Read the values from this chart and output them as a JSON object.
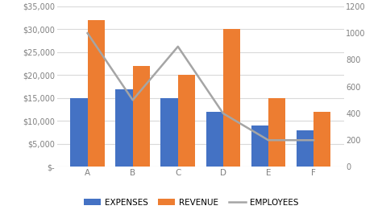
{
  "categories": [
    "A",
    "B",
    "C",
    "D",
    "E",
    "F"
  ],
  "expenses": [
    15000,
    17000,
    15000,
    12000,
    9000,
    8000
  ],
  "revenue": [
    32000,
    22000,
    20000,
    30000,
    15000,
    12000
  ],
  "employees": [
    1000,
    500,
    900,
    400,
    200,
    200
  ],
  "bar_color_expenses": "#4472C4",
  "bar_color_revenue": "#ED7D31",
  "line_color_employees": "#A5A5A5",
  "ylim_left": [
    0,
    35000
  ],
  "ylim_right": [
    0,
    1200
  ],
  "yticks_left": [
    0,
    5000,
    10000,
    15000,
    20000,
    25000,
    30000,
    35000
  ],
  "ytick_labels_left": [
    "$-",
    "$5,000",
    "$10,000",
    "$15,000",
    "$20,000",
    "$25,000",
    "$30,000",
    "$35,000"
  ],
  "yticks_right": [
    0,
    200,
    400,
    600,
    800,
    1000,
    1200
  ],
  "legend_labels": [
    "EXPENSES",
    "REVENUE",
    "EMPLOYEES"
  ],
  "bar_width": 0.38,
  "background_color": "#ffffff",
  "grid_color": "#d9d9d9",
  "tick_color": "#808080",
  "label_fontsize": 7.5,
  "tick_fontsize": 7
}
